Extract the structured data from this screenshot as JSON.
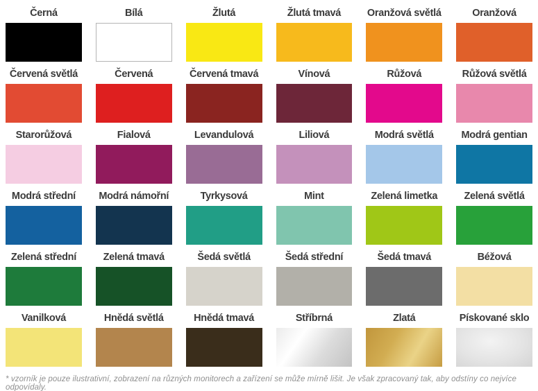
{
  "page": {
    "background": "#ffffff",
    "label_color": "#3a3a3a",
    "footer_color": "#8f8f8f"
  },
  "footer": {
    "note": "* vzorník je pouze ilustrativní, zobrazení na různých monitorech a zařízení se může mírně lišit. Je však zpracovaný tak, aby odstíny co nejvíce odpovídaly."
  },
  "swatches": [
    {
      "label": "Černá",
      "color": "#000000"
    },
    {
      "label": "Bílá",
      "color": "#ffffff",
      "border": "#b4b4b4"
    },
    {
      "label": "Žlutá",
      "color": "#f9e814"
    },
    {
      "label": "Žlutá tmavá",
      "color": "#f7ba1c"
    },
    {
      "label": "Oranžová světlá",
      "color": "#f0921e"
    },
    {
      "label": "Oranžová",
      "color": "#e0602a"
    },
    {
      "label": "Červená světlá",
      "color": "#e24b33"
    },
    {
      "label": "Červená",
      "color": "#de1f1f"
    },
    {
      "label": "Červená tmavá",
      "color": "#8a2420"
    },
    {
      "label": "Vínová",
      "color": "#6d2639"
    },
    {
      "label": "Růžová",
      "color": "#e3098c"
    },
    {
      "label": "Růžová světlá",
      "color": "#e888ac"
    },
    {
      "label": "Starorůžová",
      "color": "#f5cde2"
    },
    {
      "label": "Fialová",
      "color": "#911b5c"
    },
    {
      "label": "Levandulová",
      "color": "#996c95"
    },
    {
      "label": "Liliová",
      "color": "#c491bb"
    },
    {
      "label": "Modrá světlá",
      "color": "#a4c7e9"
    },
    {
      "label": "Modrá gentian",
      "color": "#0f76a4"
    },
    {
      "label": "Modrá střední",
      "color": "#14619f"
    },
    {
      "label": "Modrá námořní",
      "color": "#13344f"
    },
    {
      "label": "Tyrkysová",
      "color": "#219e86"
    },
    {
      "label": "Mint",
      "color": "#80c5ae"
    },
    {
      "label": "Zelená limetka",
      "color": "#a0c717"
    },
    {
      "label": "Zelená světlá",
      "color": "#28a13a"
    },
    {
      "label": "Zelená střední",
      "color": "#1e7b3b"
    },
    {
      "label": "Zelená tmavá",
      "color": "#165227"
    },
    {
      "label": "Šedá světlá",
      "color": "#d6d3cb"
    },
    {
      "label": "Šedá střední",
      "color": "#b2b0a9"
    },
    {
      "label": "Šedá tmavá",
      "color": "#6c6c6c"
    },
    {
      "label": "Béžová",
      "color": "#f3dfa4"
    },
    {
      "label": "Vanilková",
      "color": "#f3e478"
    },
    {
      "label": "Hnědá světlá",
      "color": "#b3854d"
    },
    {
      "label": "Hnědá tmavá",
      "color": "#3a2d1b"
    },
    {
      "label": "Stříbrná",
      "finish": "metallic-silver",
      "gradient": "linear-gradient(125deg, #ebebeb 0%, #ffffff 30%, #dcdcdc 62%, #c3c3c3 100%)"
    },
    {
      "label": "Zlatá",
      "finish": "metallic-gold",
      "gradient": "linear-gradient(120deg, #c1963c 0%, #d2ad52 35%, #ead387 65%, #c69c42 100%)"
    },
    {
      "label": "Pískované sklo",
      "finish": "frosted-glass",
      "gradient": "radial-gradient(ellipse at 45% 35%, #f3f3f3 0%, #e4e4e4 55%, #d4d4d4 100%)"
    }
  ]
}
